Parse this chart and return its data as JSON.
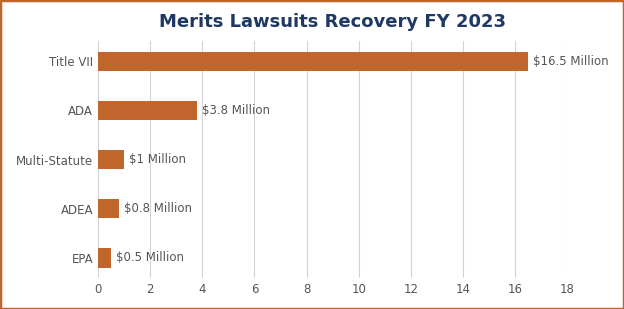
{
  "title": "Merits Lawsuits Recovery FY 2023",
  "categories": [
    "Title VII",
    "ADA",
    "Multi-Statute",
    "ADEA",
    "EPA"
  ],
  "values": [
    16.5,
    3.8,
    1.0,
    0.8,
    0.5
  ],
  "labels": [
    "$16.5 Million",
    "$3.8 Million",
    "$1 Million",
    "$0.8 Million",
    "$0.5 Million"
  ],
  "bar_color": "#C0652B",
  "title_color": "#1F3864",
  "label_color": "#555555",
  "axis_label_color": "#555555",
  "background_color": "#FFFFFF",
  "border_color": "#C0652B",
  "grid_color": "#D3D3D3",
  "xlim": [
    0,
    18
  ],
  "xticks": [
    0,
    2,
    4,
    6,
    8,
    10,
    12,
    14,
    16,
    18
  ],
  "title_fontsize": 13,
  "label_fontsize": 8.5,
  "tick_fontsize": 8.5,
  "ytick_fontsize": 8.5,
  "bar_height": 0.4,
  "figsize": [
    6.24,
    3.09
  ],
  "dpi": 100
}
